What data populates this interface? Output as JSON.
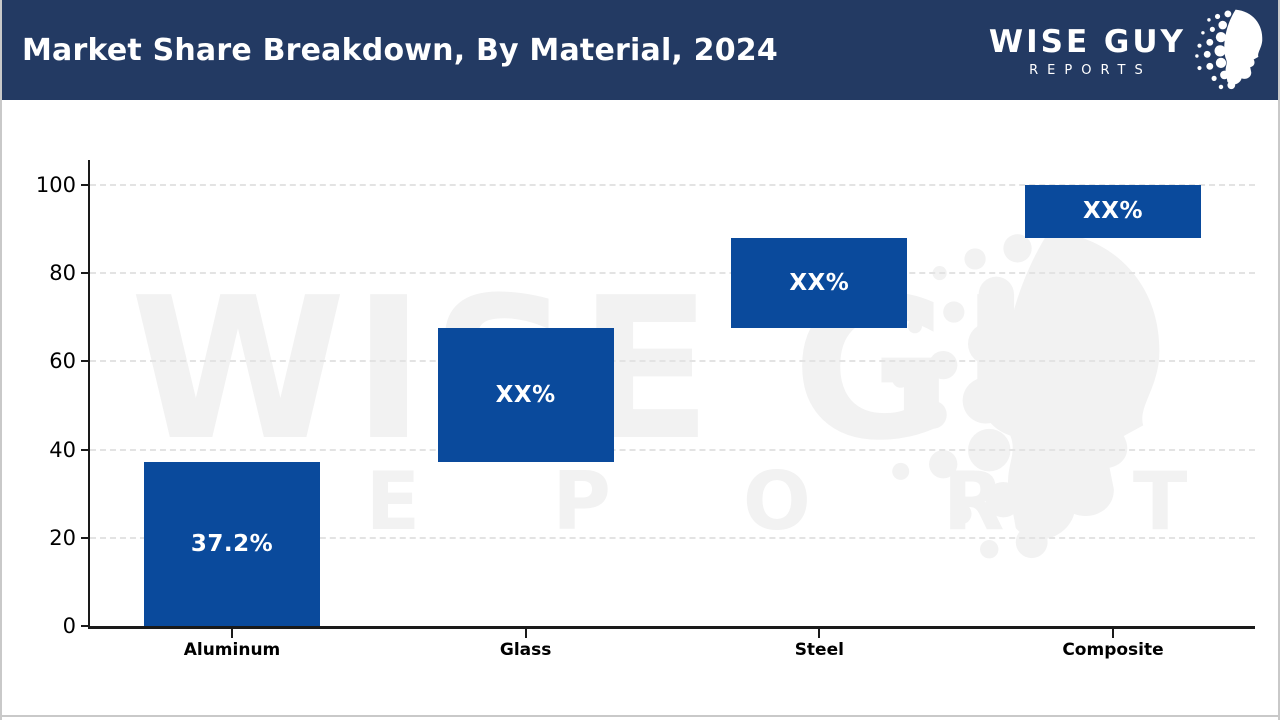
{
  "header": {
    "title": "Market Share Breakdown, By Material, 2024",
    "logo": {
      "line1": "WISE GUY",
      "line2": "REPORTS"
    }
  },
  "watermark": {
    "line1": "WISE GU",
    "line2": "REPORTS"
  },
  "colors": {
    "header_bg": "#233a63",
    "bar_color": "#0a4a9c",
    "grid_color": "#e3e3e3",
    "axis_color": "#1a1a1a",
    "watermark_color": "#f2f2f2"
  },
  "chart_data": {
    "type": "bar",
    "subtype": "waterfall",
    "title": "Market Share Breakdown, By Material, 2024",
    "xlabel": "",
    "ylabel": "",
    "categories": [
      "Aluminum",
      "Glass",
      "Steel",
      "Composite"
    ],
    "segments": [
      {
        "category": "Aluminum",
        "start": 0,
        "end": 37.2,
        "value": 37.2,
        "label": "37.2%"
      },
      {
        "category": "Glass",
        "start": 37.2,
        "end": 67.6,
        "value": 30.4,
        "label": "XX%"
      },
      {
        "category": "Steel",
        "start": 67.6,
        "end": 88.0,
        "value": 20.4,
        "label": "XX%"
      },
      {
        "category": "Composite",
        "start": 88.0,
        "end": 100,
        "value": 12.0,
        "label": "XX%"
      }
    ],
    "ylim": [
      0,
      100
    ],
    "yticks": [
      0,
      20,
      40,
      60,
      80,
      100
    ],
    "grid": "horizontal-dashed",
    "legend": "none",
    "bar_color": "#0a4a9c"
  }
}
